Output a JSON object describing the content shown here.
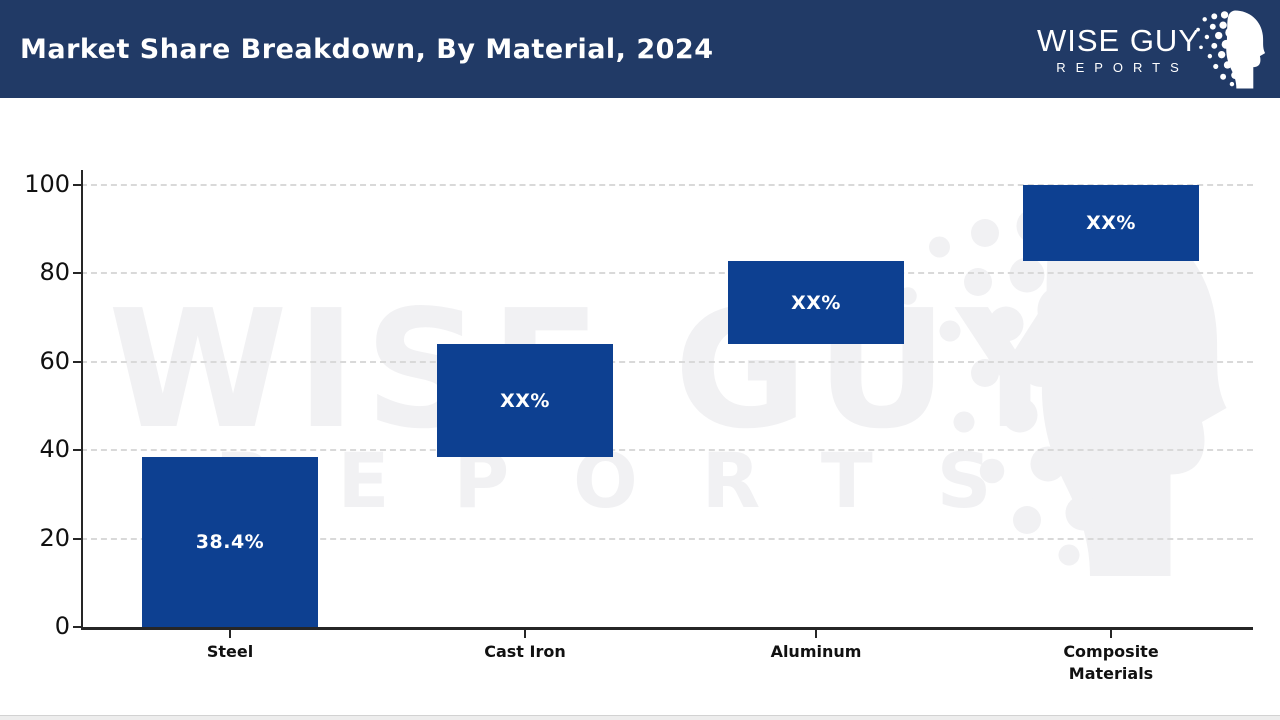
{
  "header": {
    "title": "Market Share Breakdown, By Material, 2024",
    "logo": {
      "line1": "WISE GUY",
      "line2": "REPORTS"
    }
  },
  "watermark": {
    "line1": "WISE GUY",
    "line2": "REPORTS"
  },
  "colors": {
    "header_bg": "#213a66",
    "bar": "#0d4091",
    "bar_label": "#ffffff",
    "axis": "#262626",
    "grid": "#d9d9d9",
    "watermark": "#f1f1f3"
  },
  "chart_data": {
    "type": "bar",
    "subtype": "waterfall",
    "title": "Market Share Breakdown, By Material, 2024",
    "categories": [
      "Steel",
      "Cast Iron",
      "Aluminum",
      "Composite Materials"
    ],
    "segments": [
      {
        "category": "Steel",
        "start": 0,
        "end": 38.4,
        "value": 38.4,
        "label": "38.4%"
      },
      {
        "category": "Cast Iron",
        "start": 38.4,
        "end": 64.0,
        "value": 25.6,
        "label": "XX%"
      },
      {
        "category": "Aluminum",
        "start": 64.0,
        "end": 82.8,
        "value": 18.8,
        "label": "XX%"
      },
      {
        "category": "Composite Materials",
        "start": 82.8,
        "end": 100.0,
        "value": 17.2,
        "label": "XX%"
      }
    ],
    "xlabel": "",
    "ylabel": "",
    "ylim": [
      0,
      100
    ],
    "yticks": [
      0,
      20,
      40,
      60,
      80,
      100
    ],
    "grid": "horizontal-dashed",
    "legend": "none",
    "bar_color": "#0d4091"
  }
}
